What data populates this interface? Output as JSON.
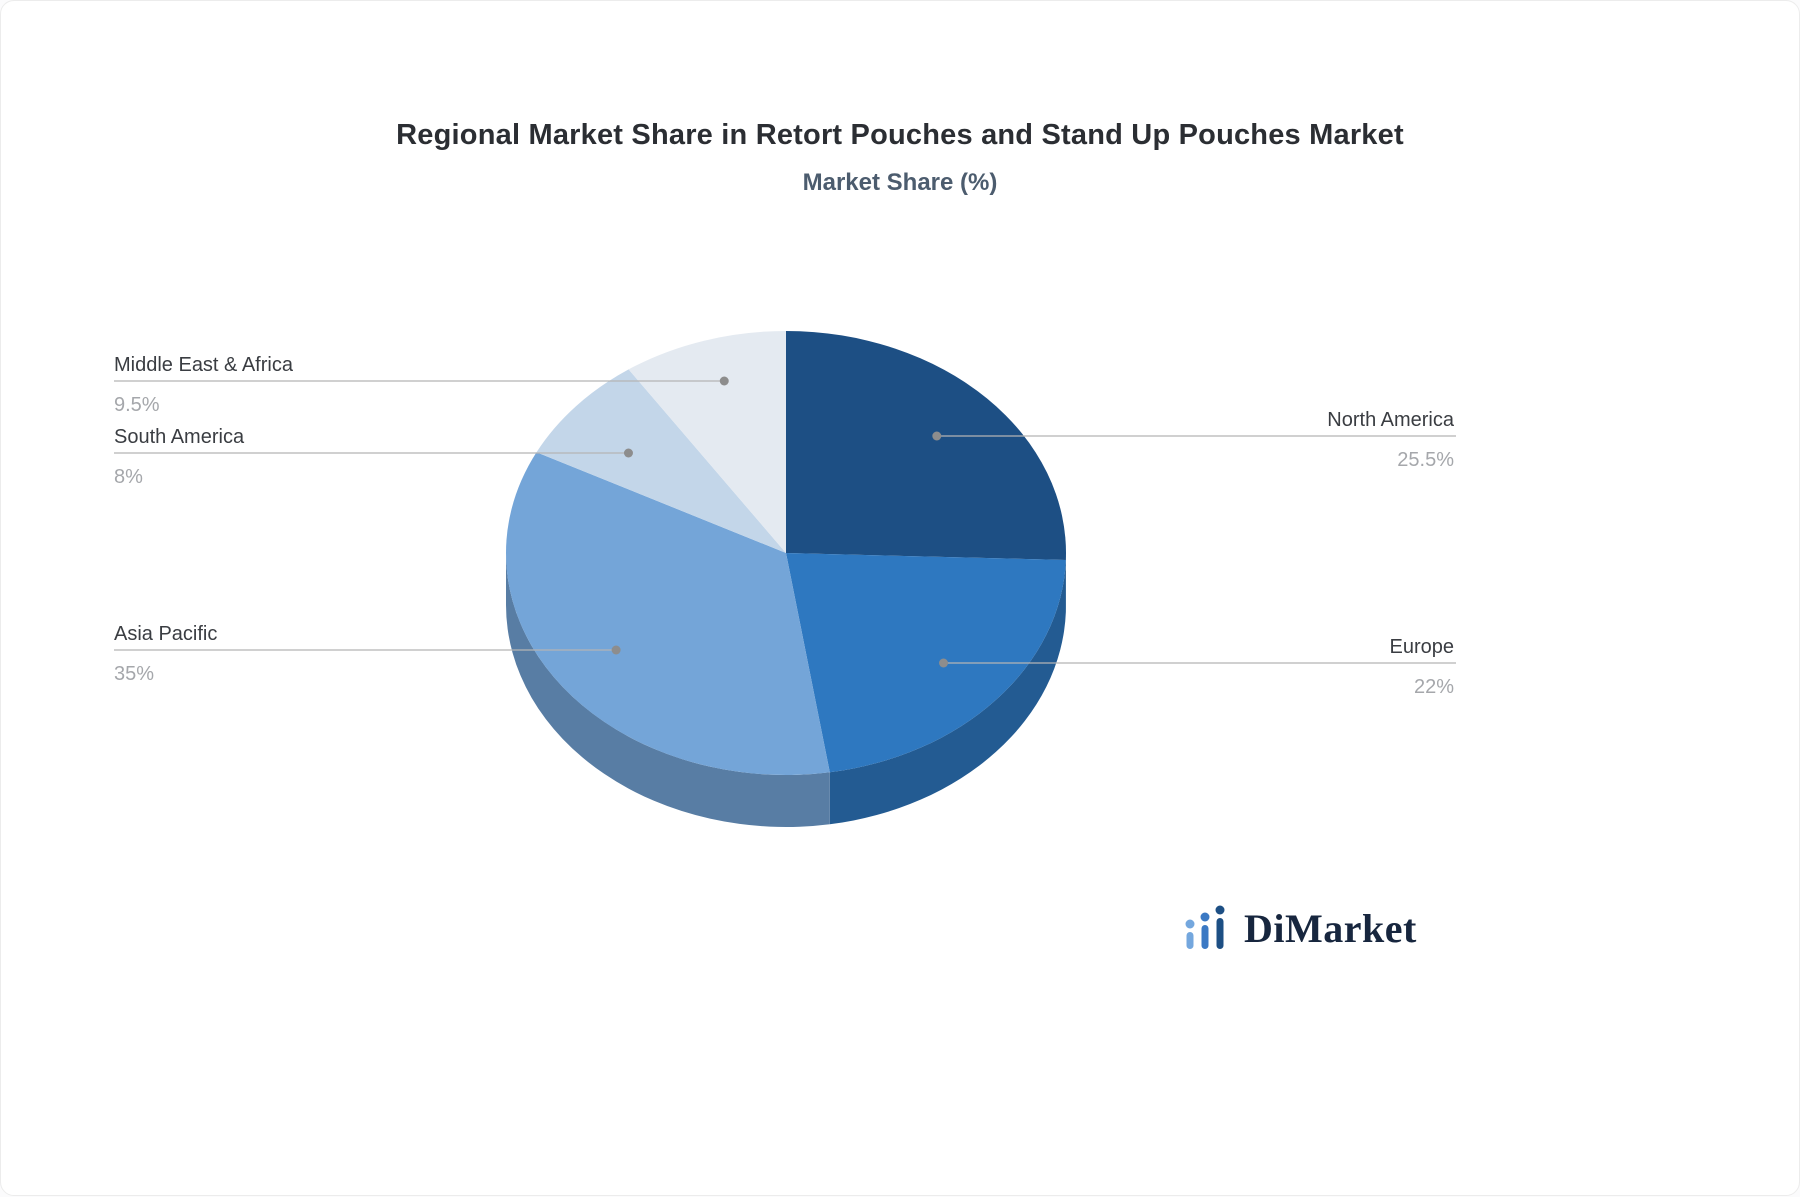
{
  "chart_data": {
    "type": "pie",
    "style": "3d",
    "title": "Regional Market Share in Retort Pouches and Stand Up Pouches Market",
    "subtitle": "Market Share (%)",
    "unit": "%",
    "legend_position": "none",
    "slices": [
      {
        "name": "North America",
        "value": 25.5,
        "label": "25.5%",
        "color": "#1d4f84"
      },
      {
        "name": "Europe",
        "value": 22,
        "label": "22%",
        "color": "#2e78c0"
      },
      {
        "name": "Asia Pacific",
        "value": 35,
        "label": "35%",
        "color": "#74a5d8"
      },
      {
        "name": "South America",
        "value": 8,
        "label": "8%",
        "color": "#c3d6e9"
      },
      {
        "name": "Middle East & Africa",
        "value": 9.5,
        "label": "9.5%",
        "color": "#e4eaf1"
      }
    ]
  },
  "brand": {
    "name": "DiMarket",
    "text_color": "#17263e",
    "icon_colors": [
      "#74a7de",
      "#3b79c4",
      "#1d4f84"
    ]
  }
}
